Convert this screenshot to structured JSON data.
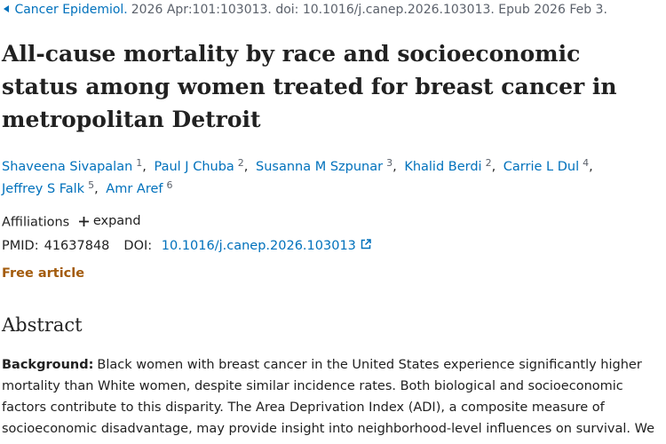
{
  "citation": {
    "journal": "Cancer Epidemiol.",
    "details": "2026 Apr:101:103013. doi: 10.1016/j.canep.2026.103013. Epub 2026 Feb 3."
  },
  "title": "All-cause mortality by race and socioeconomic status among women treated for breast cancer in metropolitan Detroit",
  "authors": [
    {
      "name": "Shaveena Sivapalan",
      "affiliation": 1
    },
    {
      "name": "Paul J Chuba",
      "affiliation": 2
    },
    {
      "name": "Susanna M Szpunar",
      "affiliation": 3
    },
    {
      "name": "Khalid Berdi",
      "affiliation": 2
    },
    {
      "name": "Carrie L Dul",
      "affiliation": 4
    },
    {
      "name": "Jeffrey S Falk",
      "affiliation": 5
    },
    {
      "name": "Amr Aref",
      "affiliation": 6
    }
  ],
  "affiliations": {
    "label": "Affiliations",
    "action": "expand"
  },
  "identifiers": {
    "pmid_label": "PMID:",
    "pmid": "41637848",
    "doi_label": "DOI:",
    "doi": "10.1016/j.canep.2026.103013"
  },
  "free_article": "Free article",
  "abstract": {
    "heading": "Abstract",
    "sections": [
      {
        "label": "Background:",
        "text": "Black women with breast cancer in the United States experience significantly higher mortality than White women, despite similar incidence rates. Both biological and socioeconomic factors contribute to this disparity. The Area Deprivation Index (ADI), a composite measure of socioeconomic disadvantage, may provide insight into neighborhood-level influences on survival. We"
      }
    ]
  }
}
